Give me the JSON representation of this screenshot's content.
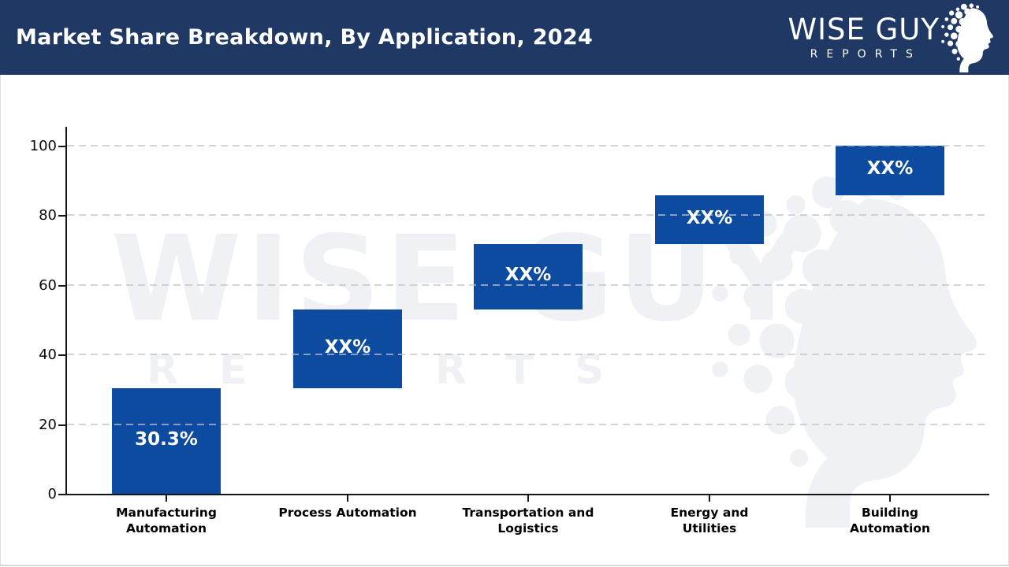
{
  "header": {
    "title": "Market Share Breakdown, By Application, 2024",
    "brand_line1": "WISE GUY",
    "brand_line2": "REPORTS",
    "bg_color": "#1f3864"
  },
  "watermark": {
    "line1": "WISE GUY",
    "line2": "REPORTS"
  },
  "chart_data": {
    "type": "bar",
    "subtype": "waterfall",
    "title": "Market Share Breakdown, By Application, 2024",
    "categories": [
      [
        "Manufacturing",
        "Automation"
      ],
      [
        "Process Automation"
      ],
      [
        "Transportation and",
        "Logistics"
      ],
      [
        "Energy and",
        "Utilities"
      ],
      [
        "Building",
        "Automation"
      ]
    ],
    "segments": [
      {
        "start": 0,
        "end": 30.3,
        "label": "30.3%"
      },
      {
        "start": 30.3,
        "end": 53.0,
        "label": "XX%"
      },
      {
        "start": 53.0,
        "end": 71.8,
        "label": "XX%"
      },
      {
        "start": 71.8,
        "end": 85.8,
        "label": "XX%"
      },
      {
        "start": 85.8,
        "end": 100,
        "label": "XX%"
      }
    ],
    "yticks": [
      0,
      20,
      40,
      60,
      80,
      100
    ],
    "ylim": [
      0,
      105.7
    ],
    "xlabel": "",
    "ylabel": "",
    "bar_color": "#0c4b9f",
    "grid": "dashed-horizontal",
    "legend": "none"
  }
}
